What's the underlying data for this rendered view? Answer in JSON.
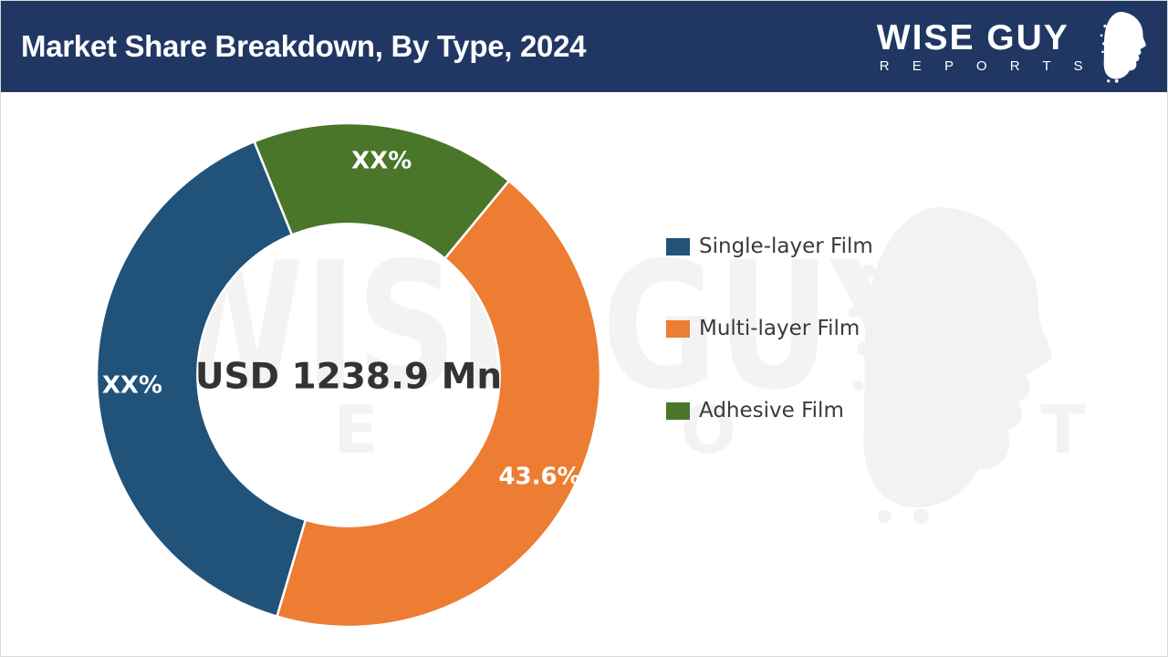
{
  "page": {
    "background": "#ffffff",
    "border_color": "#d9d9d9"
  },
  "header": {
    "title": "Market Share Breakdown, By Type, 2024",
    "bg_color": "#203764",
    "logo": {
      "line1": "WISE GUY",
      "line2": "R E P O R T S"
    }
  },
  "watermark": {
    "line1": "WISE GUY",
    "line2": "R E P O R T S"
  },
  "chart_data": {
    "type": "pie",
    "subtype": "donut",
    "title": "Market Share Breakdown, By Type, 2024",
    "center_label": "USD 1238.9 Mn",
    "start_angle_deg": 112,
    "direction": "counterclockwise",
    "inner_radius_ratio": 0.6,
    "legend_position": "right",
    "segments": [
      {
        "label": "Single-layer Film",
        "value_pct": 39.3,
        "display_label": "XX%",
        "color": "#215279"
      },
      {
        "label": "Multi-layer Film",
        "value_pct": 43.6,
        "display_label": "43.6%",
        "color": "#EC7D33"
      },
      {
        "label": "Adhesive Film",
        "value_pct": 17.1,
        "display_label": "XX%",
        "color": "#4A7629"
      }
    ]
  }
}
